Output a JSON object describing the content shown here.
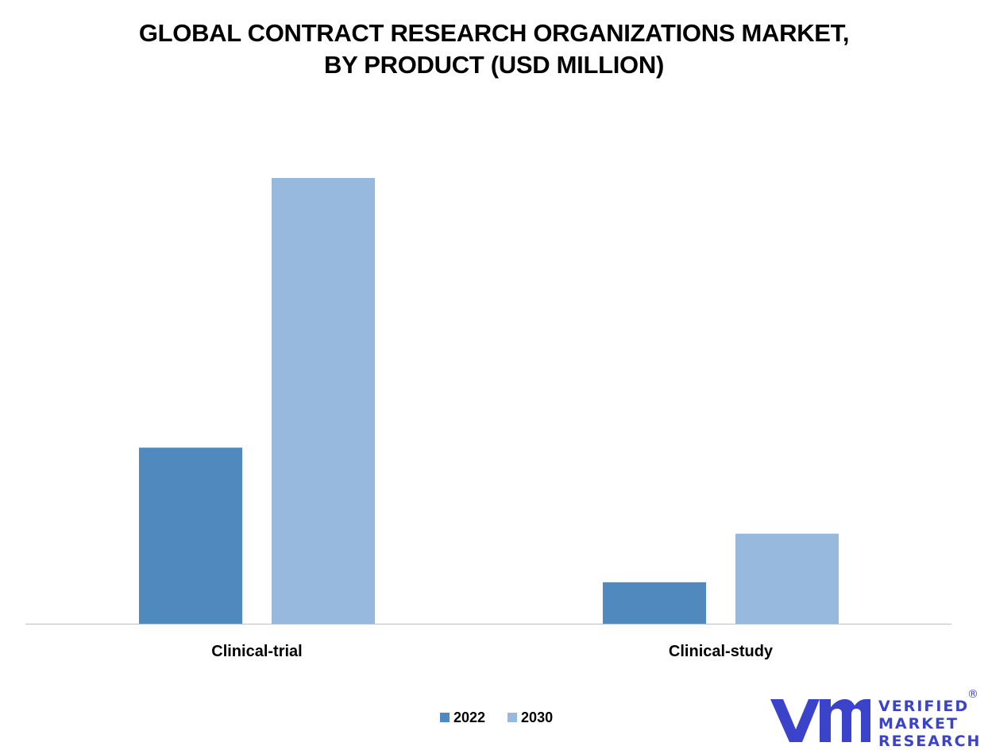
{
  "chart_data": {
    "type": "bar",
    "title_lines": [
      "GLOBAL CONTRACT RESEARCH ORGANIZATIONS MARKET,",
      "BY PRODUCT (USD MILLION)"
    ],
    "categories": [
      "Clinical-trial",
      "Clinical-study"
    ],
    "series": [
      {
        "name": "2022",
        "color": "#4f89bd",
        "values": [
          39.5,
          9.3
        ]
      },
      {
        "name": "2030",
        "color": "#98b9de",
        "values": [
          100,
          20.2
        ]
      }
    ],
    "ylim": [
      0,
      100
    ],
    "grid": false,
    "legend_position": "bottom-center"
  },
  "brand": {
    "lines": [
      "VERIFIED",
      "MARKET",
      "RESEARCH"
    ],
    "registered_mark": "®",
    "color": "#3a43c9"
  }
}
